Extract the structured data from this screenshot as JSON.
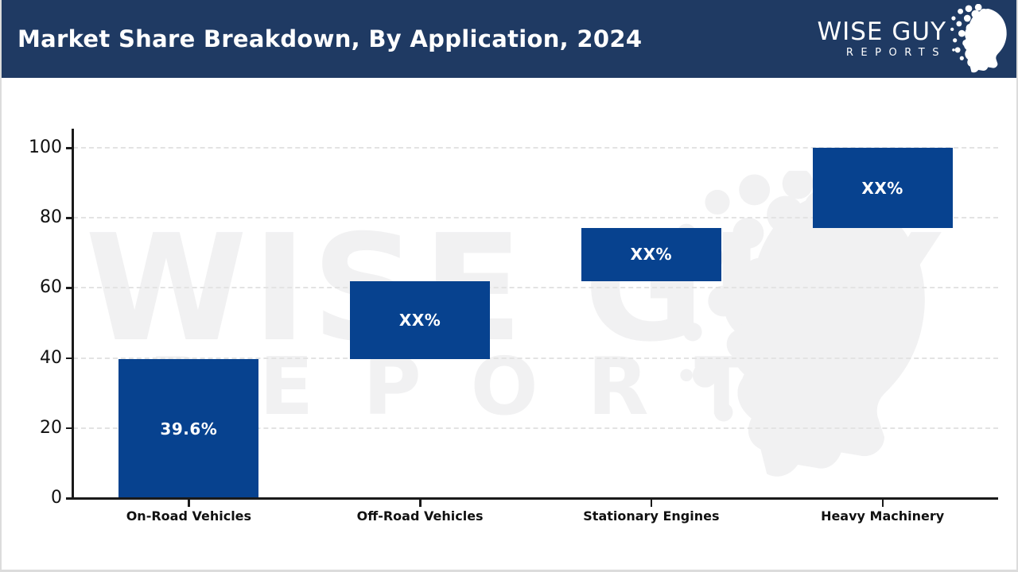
{
  "header": {
    "title": "Market Share Breakdown, By Application, 2024"
  },
  "logo": {
    "name": "WISE GUY",
    "subtitle": "REPORTS"
  },
  "watermark": {
    "line1": "WISE GUY",
    "line2": "REPORTS"
  },
  "colors": {
    "header_bg": "#1f3a63",
    "bar": "#07428f",
    "gridline": "#e3e3e3",
    "axis": "#1a1a1a",
    "watermark": "#f1f1f2",
    "page_border": "#dcdcdc",
    "bar_label": "#ffffff"
  },
  "chart_data": {
    "type": "bar",
    "subtype": "waterfall-floating-bars",
    "title": "Market Share Breakdown, By Application, 2024",
    "categories": [
      "On-Road Vehicles",
      "Off-Road Vehicles",
      "Stationary Engines",
      "Heavy Machinery"
    ],
    "segments": [
      {
        "category": "On-Road Vehicles",
        "start": 0,
        "end": 39.6,
        "label": "39.6%"
      },
      {
        "category": "Off-Road Vehicles",
        "start": 39.6,
        "end": 62,
        "label": "XX%"
      },
      {
        "category": "Stationary Engines",
        "start": 62,
        "end": 77,
        "label": "XX%"
      },
      {
        "category": "Heavy Machinery",
        "start": 77,
        "end": 100,
        "label": "XX%"
      }
    ],
    "xlabel": "",
    "ylabel": "",
    "ylim": [
      0,
      100
    ],
    "yticks": [
      0,
      20,
      40,
      60,
      80,
      100
    ],
    "grid": "horizontal-dashed",
    "legend": "none",
    "bar_color": "#07428f",
    "bar_label_color": "#ffffff"
  }
}
